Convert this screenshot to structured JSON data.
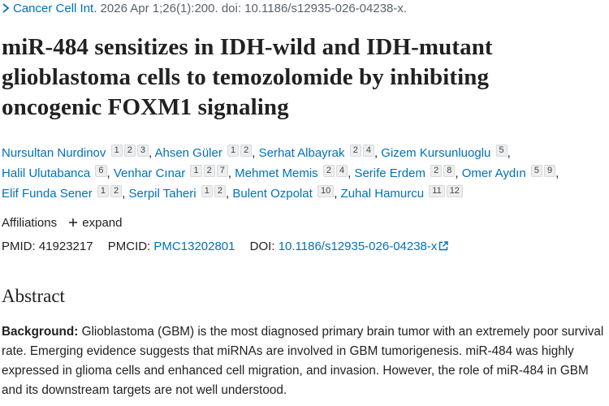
{
  "citation": {
    "journal": "Cancer Cell Int.",
    "details": "2026 Apr 1;26(1):200. doi: 10.1186/s12935-026-04238-x."
  },
  "title": "miR-484 sensitizes in IDH-wild and IDH-mutant glioblastoma cells to temozolomide by inhibiting oncogenic FOXM1 signaling",
  "authors_separator": ",",
  "authors": [
    {
      "name": "Nursultan Nurdinov",
      "affiliations": [
        "1",
        "2",
        "3"
      ]
    },
    {
      "name": "Ahsen Güler",
      "affiliations": [
        "1",
        "2"
      ]
    },
    {
      "name": "Serhat Albayrak",
      "affiliations": [
        "2",
        "4"
      ]
    },
    {
      "name": "Gizem Kursunluoglu",
      "affiliations": [
        "5"
      ]
    },
    {
      "name": "Halil Ulutabanca",
      "affiliations": [
        "6"
      ]
    },
    {
      "name": "Venhar Cınar",
      "affiliations": [
        "1",
        "2",
        "7"
      ]
    },
    {
      "name": "Mehmet Memis",
      "affiliations": [
        "2",
        "4"
      ]
    },
    {
      "name": "Serife Erdem",
      "affiliations": [
        "2",
        "8"
      ]
    },
    {
      "name": "Omer Aydın",
      "affiliations": [
        "5",
        "9"
      ]
    },
    {
      "name": "Elif Funda Sener",
      "affiliations": [
        "1",
        "2"
      ]
    },
    {
      "name": "Serpil Taheri",
      "affiliations": [
        "1",
        "2"
      ]
    },
    {
      "name": "Bulent Ozpolat",
      "affiliations": [
        "10"
      ]
    },
    {
      "name": "Zuhal Hamurcu",
      "affiliations": [
        "11",
        "12"
      ]
    }
  ],
  "affiliations_toggle": {
    "label": "Affiliations",
    "action": "expand"
  },
  "identifiers": {
    "pmid": "PMID: 41923217",
    "pmcid_label": "PMCID:",
    "pmcid": "PMC13202801",
    "doi_label": "DOI:",
    "doi": "10.1186/s12935-026-04238-x"
  },
  "abstract": {
    "heading": "Abstract",
    "background_label": "Background:",
    "background_text": "Glioblastoma (GBM) is the most diagnosed primary brain tumor with an extremely poor survival rate. Emerging evidence suggests that miRNAs are involved in GBM tumorigenesis. miR-484 was highly expressed in glioma cells and enhanced cell migration, and invasion. However, the role of miR-484 in GBM and its downstream targets are not well understood."
  }
}
